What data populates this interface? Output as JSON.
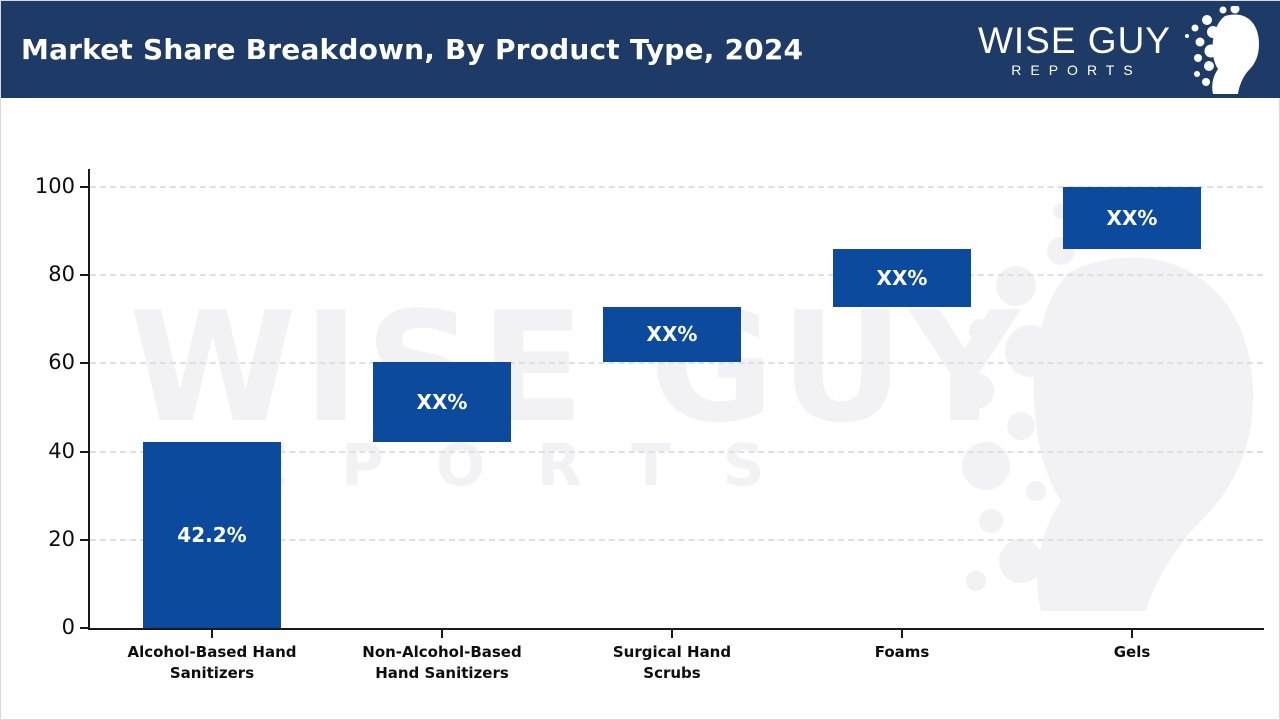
{
  "header": {
    "title": "Market Share Breakdown, By Product Type, 2024",
    "bg_color": "#1e3a66",
    "brand_line1": "WISE GUY",
    "brand_line2": "REPORTS"
  },
  "watermark": {
    "line1": "WISE GUY",
    "line2": "REPORTS"
  },
  "chart_data": {
    "type": "bar",
    "subtype": "waterfall",
    "title": "Market Share Breakdown, By Product Type, 2024",
    "categories": [
      "Alcohol-Based Hand Sanitizers",
      "Non-Alcohol-Based Hand Sanitizers",
      "Surgical Hand Scrubs",
      "Foams",
      "Gels"
    ],
    "category_lines": [
      [
        "Alcohol-Based Hand",
        "Sanitizers"
      ],
      [
        "Non-Alcohol-Based",
        "Hand Sanitizers"
      ],
      [
        "Surgical Hand",
        "Scrubs"
      ],
      [
        "Foams"
      ],
      [
        "Gels"
      ]
    ],
    "series": [
      {
        "name": "Market Share (%)",
        "starts": [
          0,
          42.2,
          60.4,
          72.9,
          85.9
        ],
        "ends": [
          42.2,
          60.4,
          72.9,
          85.9,
          100
        ],
        "labels": [
          "42.2%",
          "XX%",
          "XX%",
          "XX%",
          "XX%"
        ]
      }
    ],
    "yticks": [
      0,
      20,
      40,
      60,
      80,
      100
    ],
    "ylim": [
      0,
      104
    ],
    "xlabel": "",
    "ylabel": "",
    "grid": "dashed-horizontal",
    "legend": "none",
    "colors": {
      "bar": "#0c4a9e",
      "bar_label": "#ffffff",
      "header_bg": "#1e3a66",
      "axis": "#1a1a1a",
      "gridline": "#e0e0e0",
      "watermark": "#f2f2f4"
    }
  }
}
